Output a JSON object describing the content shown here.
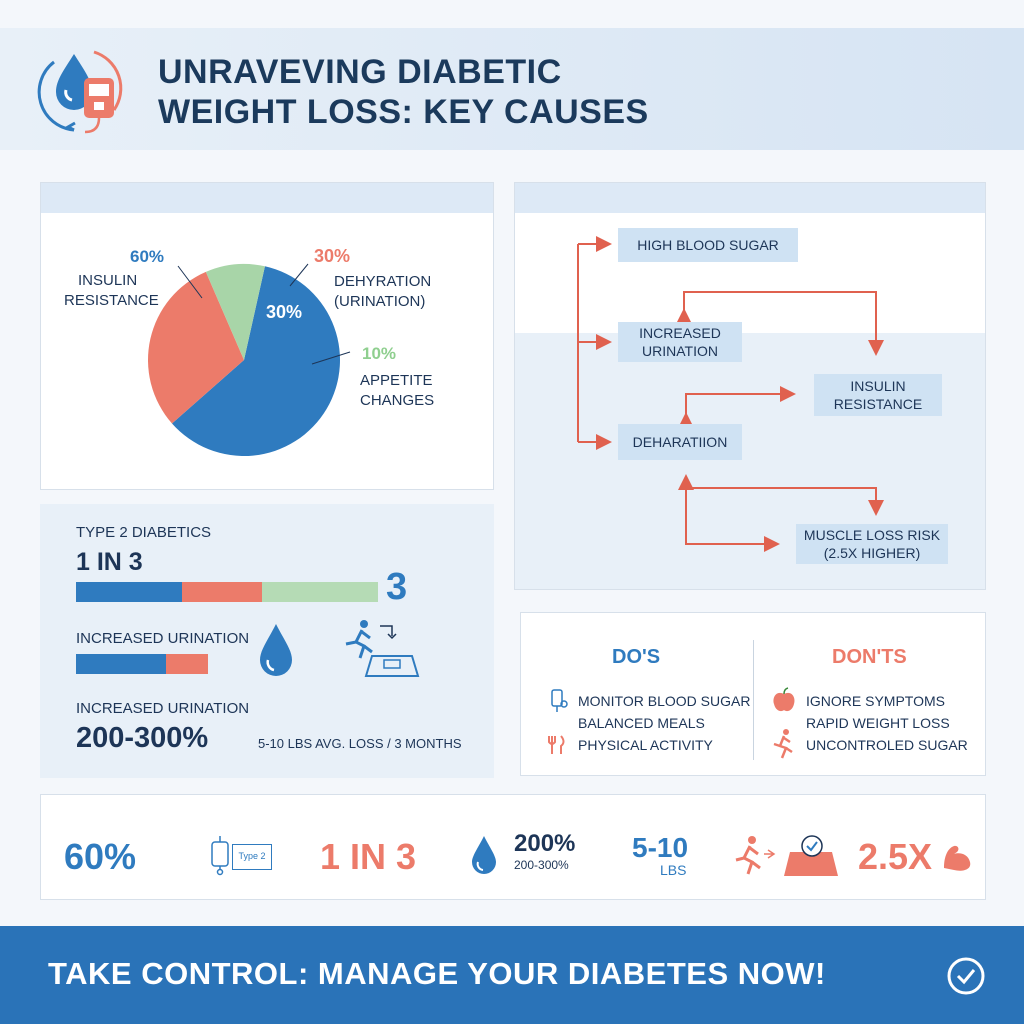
{
  "header": {
    "title_line1": "UNRAVEVING DIABETIC",
    "title_line2": "WEIGHT LOSS: KEY CAUSES",
    "logo_icon": "water-drop-glucometer-icon"
  },
  "pie": {
    "chart_data": {
      "type": "pie",
      "slices": [
        {
          "label": "INSULIN RESISTANCE",
          "value": 60,
          "color": "#2f7bbf"
        },
        {
          "label": "DEHYRATION (URINATION)",
          "value": 30,
          "color": "#ec7b6a"
        },
        {
          "label": "APPETITE CHANGES",
          "value": 10,
          "color": "#a8d5a8"
        }
      ]
    },
    "label_60": "60%",
    "label_insulin_1": "INSULIN",
    "label_insulin_2": "RESISTANCE",
    "label_30_outer": "30%",
    "label_30_inner": "30%",
    "label_dehy_1": "DEHYRATION",
    "label_dehy_2": "(URINATION)",
    "label_10": "10%",
    "label_appetite_1": "APPETITE",
    "label_appetite_2": "CHANGES"
  },
  "flow": {
    "high_blood_sugar": "HIGH BLOOD SUGAR",
    "increased_urination_1": "INCREASED",
    "increased_urination_2": "URINATION",
    "insulin_resistance_1": "INSULIN",
    "insulin_resistance_2": "RESISTANCE",
    "dehydration": "DEHARATIION",
    "muscle_loss_1": "MUSCLE LOSS RISK",
    "muscle_loss_2": "(2.5X HIGHER)"
  },
  "stats": {
    "type2_label": "TYPE 2 DIABETICS",
    "ratio": "1 IN 3",
    "ratio_big": "3",
    "urination_label": "INCREASED URINATION",
    "urination_label_2": "INCREASED URINATION",
    "urination_pct": "200-300%",
    "avg_loss": "5-10 LBS AVG. LOSS / 3 MONTHS",
    "bar_colors": [
      "#2f7bbf",
      "#ec7b6a",
      "#b5dbb5"
    ]
  },
  "dodont": {
    "dos_title": "DO'S",
    "donts_title": "DON'TS",
    "dos": [
      "MONITOR BLOOD SUGAR",
      "BALANCED MEALS",
      "PHYSICAL ACTIVITY"
    ],
    "donts": [
      "IGNORE SYMPTOMS",
      "RAPID WEIGHT LOSS",
      "UNCONTROLED SUGAR"
    ]
  },
  "summary": {
    "pct": "60%",
    "type2_tag": "Type 2",
    "ratio": "1 IN 3",
    "urine_big": "200%",
    "urine_small": "200-300%",
    "lbs_big": "5-10",
    "lbs_small": "LBS",
    "muscle": "2.5X"
  },
  "cta": {
    "text": "TAKE CONTROL: MANAGE YOUR DIABETES NOW!"
  },
  "colors": {
    "blue": "#2f7bbf",
    "coral": "#ec7b6a",
    "green": "#a8d5a8",
    "navy": "#1d3557"
  }
}
